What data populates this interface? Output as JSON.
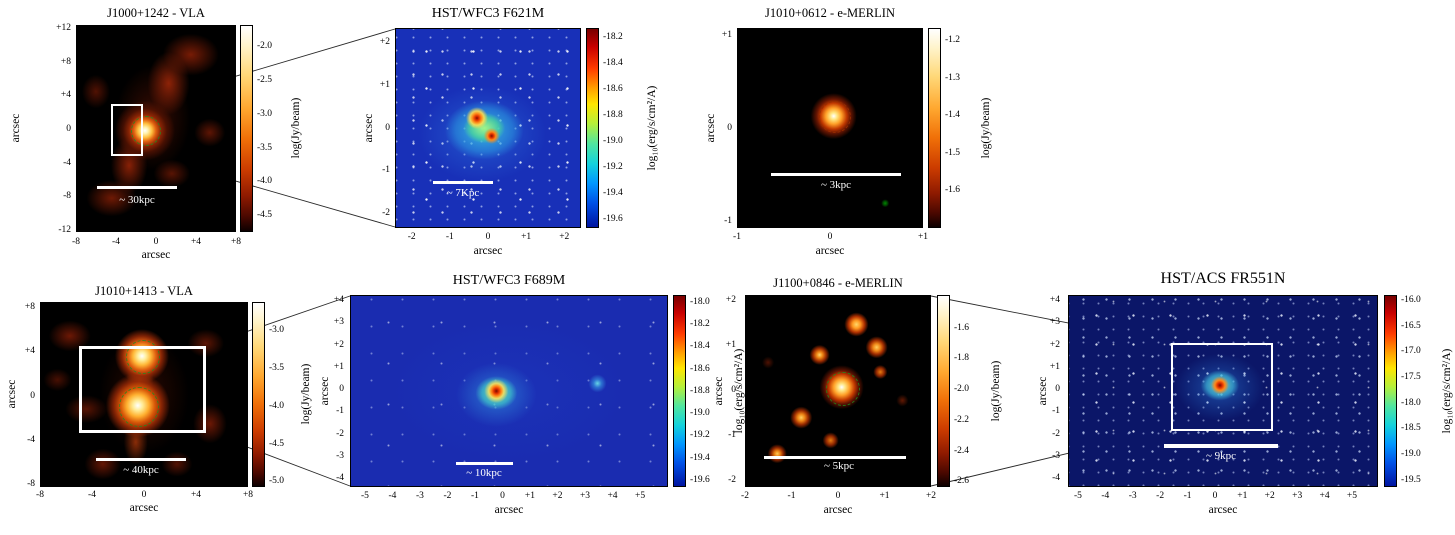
{
  "figure": {
    "panels": [
      {
        "title": "J1000+1242 - VLA",
        "xlabel": "arcsec",
        "ylabel": "arcsec",
        "xticks": [
          "-8",
          "-4",
          "0",
          "+4",
          "+8"
        ],
        "yticks": [
          "+12",
          "+8",
          "+4",
          "0",
          "-4",
          "-8",
          "-12"
        ],
        "colorbar_label": "log(Jy/beam)",
        "colorbar_ticks": [
          "-2.0",
          "-2.5",
          "-3.0",
          "-3.5",
          "-4.0",
          "-4.5"
        ],
        "scalebar_label": "~ 30kpc"
      },
      {
        "title": "HST/WFC3 F621M",
        "xlabel": "arcsec",
        "ylabel": "arcsec",
        "xticks": [
          "-2",
          "-1",
          "0",
          "+1",
          "+2"
        ],
        "yticks": [
          "+2",
          "+1",
          "0",
          "-1",
          "-2"
        ],
        "colorbar_label": "log₁₀(erg/s/cm²/A)",
        "colorbar_ticks": [
          "-18.2",
          "-18.4",
          "-18.6",
          "-18.8",
          "-19.0",
          "-19.2",
          "-19.4",
          "-19.6"
        ],
        "scalebar_label": "~ 7Kpc"
      },
      {
        "title": "J1010+0612 - e-MERLIN",
        "xlabel": "arcsec",
        "ylabel": "arcsec",
        "xticks": [
          "-1",
          "0",
          "+1"
        ],
        "yticks": [
          "+1",
          "0",
          "-1"
        ],
        "colorbar_label": "log(Jy/beam)",
        "colorbar_ticks": [
          "-1.2",
          "-1.3",
          "-1.4",
          "-1.5",
          "-1.6"
        ],
        "scalebar_label": "~ 3kpc"
      },
      {
        "title": "J1010+1413 - VLA",
        "xlabel": "arcsec",
        "ylabel": "arcsec",
        "xticks": [
          "-8",
          "-4",
          "0",
          "+4",
          "+8"
        ],
        "yticks": [
          "+8",
          "+4",
          "0",
          "-4",
          "-8"
        ],
        "colorbar_label": "log(Jy/beam)",
        "colorbar_ticks": [
          "-3.0",
          "-3.5",
          "-4.0",
          "-4.5",
          "-5.0"
        ],
        "scalebar_label": "~ 40kpc"
      },
      {
        "title": "HST/WFC3 F689M",
        "xlabel": "arcsec",
        "ylabel": "arcsec",
        "xticks": [
          "-5",
          "-4",
          "-3",
          "-2",
          "-1",
          "0",
          "+1",
          "+2",
          "+3",
          "+4",
          "+5"
        ],
        "yticks": [
          "+4",
          "+3",
          "+2",
          "+1",
          "0",
          "-1",
          "-2",
          "-3",
          "-4"
        ],
        "colorbar_label": "log₁₀(erg/s/cm²/A)",
        "colorbar_ticks": [
          "-18.0",
          "-18.2",
          "-18.4",
          "-18.6",
          "-18.8",
          "-19.0",
          "-19.2",
          "-19.4",
          "-19.6"
        ],
        "scalebar_label": "~ 10kpc"
      },
      {
        "title": "J1100+0846 - e-MERLIN",
        "xlabel": "arcsec",
        "ylabel": "arcsec",
        "xticks": [
          "-2",
          "-1",
          "0",
          "+1",
          "+2"
        ],
        "yticks": [
          "+2",
          "+1",
          "0",
          "-1",
          "-2"
        ],
        "colorbar_label": "log(Jy/beam)",
        "colorbar_ticks": [
          "-1.6",
          "-1.8",
          "-2.0",
          "-2.2",
          "-2.4",
          "-2.6"
        ],
        "scalebar_label": "~ 5kpc"
      },
      {
        "title": "HST/ACS FR551N",
        "xlabel": "arcsec",
        "ylabel": "arcsec",
        "xticks": [
          "-5",
          "-4",
          "-3",
          "-2",
          "-1",
          "0",
          "+1",
          "+2",
          "+3",
          "+4",
          "+5"
        ],
        "yticks": [
          "+4",
          "+3",
          "+2",
          "+1",
          "0",
          "-1",
          "-2",
          "-3",
          "-4"
        ],
        "colorbar_label": "log₁₀(erg/s/cm²/A)",
        "colorbar_ticks": [
          "-16.0",
          "-16.5",
          "-17.0",
          "-17.5",
          "-18.0",
          "-18.5",
          "-19.0",
          "-19.5"
        ],
        "scalebar_label": "~ 9kpc"
      }
    ]
  },
  "chart_data": [
    {
      "type": "heatmap",
      "title": "J1000+1242 - VLA",
      "xlabel": "arcsec",
      "ylabel": "arcsec",
      "xlim": [
        -8,
        8
      ],
      "ylim": [
        -12,
        12
      ],
      "xticks": [
        -8,
        -4,
        0,
        4,
        8
      ],
      "yticks": [
        12,
        8,
        4,
        0,
        -4,
        -8,
        -12
      ],
      "colormap": "hot",
      "colorbar": {
        "label": "log(Jy/beam)",
        "ticks": [
          -2.0,
          -2.5,
          -3.0,
          -3.5,
          -4.0,
          -4.5
        ]
      },
      "scalebar": "~ 30kpc",
      "annotations": [
        "white zoom box around the radio core linked to the HST/WFC3 F621M panel",
        "green contours around the bright core"
      ],
      "description": "VLA radio map: bright compact core near centre with diffuse clumpy red emission extending to the north-east and south-west"
    },
    {
      "type": "heatmap",
      "title": "HST/WFC3 F621M",
      "xlabel": "arcsec",
      "ylabel": "arcsec",
      "xlim": [
        -2.5,
        2.5
      ],
      "ylim": [
        -2.5,
        2.5
      ],
      "xticks": [
        -2,
        -1,
        0,
        1,
        2
      ],
      "yticks": [
        2,
        1,
        0,
        -1,
        -2
      ],
      "colormap": "jet",
      "colorbar": {
        "label": "log₁₀(erg/s/cm²/A)",
        "ticks": [
          -18.2,
          -18.4,
          -18.6,
          -18.8,
          -19.0,
          -19.2,
          -19.4,
          -19.6
        ]
      },
      "scalebar": "~ 7Kpc",
      "annotations": [
        "zoom-in of the white box in the J1000+1242 VLA panel"
      ],
      "description": "HST optical image: two compact red nuclei inside a green/cyan inner glow embedded in an extended blue host galaxy with white noise speckles"
    },
    {
      "type": "heatmap",
      "title": "J1010+0612 - e-MERLIN",
      "xlabel": "arcsec",
      "ylabel": "arcsec",
      "xlim": [
        -1,
        1
      ],
      "ylim": [
        -1,
        1
      ],
      "xticks": [
        -1,
        0,
        1
      ],
      "yticks": [
        1,
        0,
        -1
      ],
      "colormap": "hot",
      "colorbar": {
        "label": "log(Jy/beam)",
        "ticks": [
          -1.2,
          -1.3,
          -1.4,
          -1.5,
          -1.6
        ]
      },
      "scalebar": "~ 3kpc",
      "annotations": [
        "contours around the compact source",
        "small green contour to the south-east"
      ],
      "description": "e-MERLIN radio map: single compact bright source slightly above centre on a black background"
    },
    {
      "type": "heatmap",
      "title": "J1010+1413 - VLA",
      "xlabel": "arcsec",
      "ylabel": "arcsec",
      "xlim": [
        -8,
        8
      ],
      "ylim": [
        -8,
        8
      ],
      "xticks": [
        -8,
        -4,
        0,
        4,
        8
      ],
      "yticks": [
        8,
        4,
        0,
        -4,
        -8
      ],
      "colormap": "hot",
      "colorbar": {
        "label": "log(Jy/beam)",
        "ticks": [
          -3.0,
          -3.5,
          -4.0,
          -4.5,
          -5.0
        ]
      },
      "scalebar": "~ 40kpc",
      "annotations": [
        "large white zoom box around the centre linked to the HST/WFC3 F689M panel",
        "green contours around the bright components"
      ],
      "description": "VLA radio map: two bright components aligned roughly north-south forming an elongated structure, surrounded by clumpy diffuse red emission"
    },
    {
      "type": "heatmap",
      "title": "HST/WFC3 F689M",
      "xlabel": "arcsec",
      "ylabel": "arcsec",
      "xlim": [
        -5.5,
        5.5
      ],
      "ylim": [
        -4.5,
        4.5
      ],
      "xticks": [
        -5,
        -4,
        -3,
        -2,
        -1,
        0,
        1,
        2,
        3,
        4,
        5
      ],
      "yticks": [
        4,
        3,
        2,
        1,
        0,
        -1,
        -2,
        -3,
        -4
      ],
      "colormap": "jet",
      "colorbar": {
        "label": "log₁₀(erg/s/cm²/A)",
        "ticks": [
          -18.0,
          -18.2,
          -18.4,
          -18.6,
          -18.8,
          -19.0,
          -19.2,
          -19.4,
          -19.6
        ]
      },
      "scalebar": "~ 10kpc",
      "annotations": [
        "zoom-in of the white box in the J1010+1413 VLA panel"
      ],
      "description": "HST optical image: galaxy with a compact red/orange nucleus and cyan-green glow at centre plus a small cyan companion blob to the east, on a blue background"
    },
    {
      "type": "heatmap",
      "title": "J1100+0846 - e-MERLIN",
      "xlabel": "arcsec",
      "ylabel": "arcsec",
      "xlim": [
        -2,
        2
      ],
      "ylim": [
        -2,
        2
      ],
      "xticks": [
        -2,
        -1,
        0,
        1,
        2
      ],
      "yticks": [
        2,
        1,
        0,
        -1,
        -2
      ],
      "colormap": "hot",
      "colorbar": {
        "label": "log(Jy/beam)",
        "ticks": [
          -1.6,
          -1.8,
          -2.0,
          -2.2,
          -2.4,
          -2.6
        ]
      },
      "scalebar": "~ 5kpc",
      "annotations": [
        "green contours around the central source"
      ],
      "description": "e-MERLIN radio map: bright compact core at centre with a chain of fainter orange knots extending towards the north-east and south-west"
    },
    {
      "type": "heatmap",
      "title": "HST/ACS FR551N",
      "xlabel": "arcsec",
      "ylabel": "arcsec",
      "xlim": [
        -5.5,
        5.5
      ],
      "ylim": [
        -4.5,
        4.5
      ],
      "xticks": [
        -5,
        -4,
        -3,
        -2,
        -1,
        0,
        1,
        2,
        3,
        4,
        5
      ],
      "yticks": [
        4,
        3,
        2,
        1,
        0,
        -1,
        -2,
        -3,
        -4
      ],
      "colormap": "jet",
      "colorbar": {
        "label": "log₁₀(erg/s/cm²/A)",
        "ticks": [
          -16.0,
          -16.5,
          -17.0,
          -17.5,
          -18.0,
          -18.5,
          -19.0,
          -19.5
        ]
      },
      "scalebar": "~ 9kpc",
      "annotations": [
        "white box marking the e-MERLIN J1100+0846 field of view, connected by lines to that panel"
      ],
      "description": "HST narrow-band image: red nucleus inside a cyan glow at centre on a dark blue, densely speckled background"
    }
  ]
}
